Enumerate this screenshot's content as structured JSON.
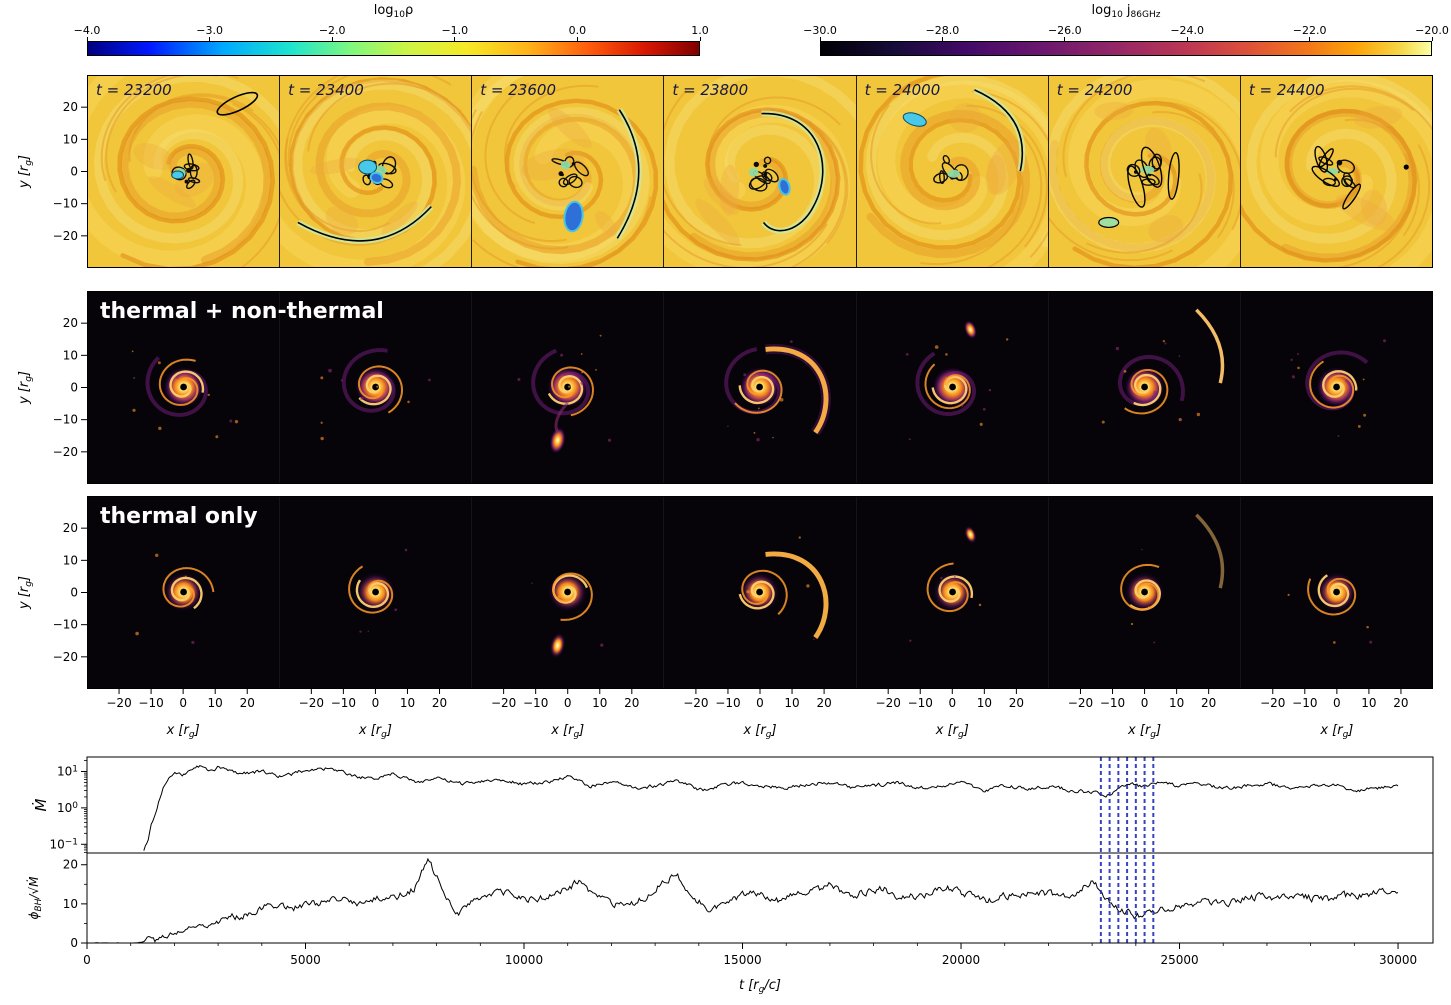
{
  "colorbars": {
    "density": {
      "title": "log_{10}ρ",
      "ticks": [
        "−4.0",
        "−3.0",
        "−2.0",
        "−1.0",
        "0.0",
        "1.0"
      ],
      "range": [
        -4,
        1
      ],
      "stops": [
        "#00007f 0%",
        "#0018ff 10%",
        "#00a8ff 22%",
        "#1de4cf 33%",
        "#7ef87e 43%",
        "#ccf446 52%",
        "#f6e926 62%",
        "#ffb31a 72%",
        "#ff5c0c 82%",
        "#d91802 91%",
        "#800000 100%"
      ]
    },
    "emission": {
      "title": "log_{10} j_{86GHz}",
      "ticks": [
        "−30.0",
        "−28.0",
        "−26.0",
        "−24.0",
        "−22.0",
        "−20.0"
      ],
      "range": [
        -30,
        -20
      ],
      "stops": [
        "#000004 0%",
        "#160b39 12%",
        "#420a68 24%",
        "#6a176e 36%",
        "#932667 48%",
        "#bc3754 60%",
        "#dd513a 70%",
        "#f37819 80%",
        "#fca50a 88%",
        "#f6d746 95%",
        "#fcffa4 100%"
      ]
    }
  },
  "snapshots": {
    "times": [
      23200,
      23400,
      23600,
      23800,
      24000,
      24200,
      24400
    ],
    "labels": [
      "t = 23200",
      "t = 23400",
      "t = 23600",
      "t = 23800",
      "t = 24000",
      "t = 24200",
      "t = 24400"
    ]
  },
  "rows": {
    "ntnt_label": "thermal + non-thermal",
    "thermal_label": "thermal only"
  },
  "axes": {
    "image_ylabel": "y [r_{g}]",
    "image_ytick_vals": [
      20,
      10,
      0,
      -10,
      -20
    ],
    "image_ytick_labels": [
      "20",
      "10",
      "0",
      "−10",
      "−20"
    ],
    "image_xlabel": "x [r_{g}]",
    "image_xtick_vals": [
      -20,
      -10,
      0,
      10,
      20
    ],
    "image_xtick_labels": [
      "−20",
      "−10",
      "0",
      "10",
      "20"
    ]
  },
  "chart_data": [
    {
      "type": "line",
      "name": "accretion-rate",
      "ylabel": "Ṁ",
      "yscale": "log",
      "ylim": [
        0.055,
        25
      ],
      "xlim": [
        0,
        30800
      ],
      "xlabel": "t [r_{g}/c]",
      "xtick_vals": [
        0,
        5000,
        10000,
        15000,
        20000,
        25000,
        30000
      ],
      "xtick_labels": [
        "0",
        "5000",
        "10000",
        "15000",
        "20000",
        "25000",
        "30000"
      ],
      "ytick_vals": [
        10,
        1,
        0.1
      ],
      "ytick_labels": [
        "10^{1}",
        "10^{0}",
        "10^{−1}"
      ],
      "vlines": [
        23200,
        23400,
        23600,
        23800,
        24000,
        24200,
        24400
      ],
      "vline_color": "#2230b8",
      "points": [
        [
          1300,
          0.07
        ],
        [
          1400,
          0.12
        ],
        [
          1500,
          0.45
        ],
        [
          1600,
          0.9
        ],
        [
          1700,
          2.5
        ],
        [
          1800,
          5
        ],
        [
          2000,
          9
        ],
        [
          2200,
          7.5
        ],
        [
          2400,
          12
        ],
        [
          2600,
          14
        ],
        [
          2800,
          10
        ],
        [
          3000,
          13
        ],
        [
          3200,
          11
        ],
        [
          3500,
          9
        ],
        [
          4000,
          10
        ],
        [
          4500,
          7
        ],
        [
          5000,
          11
        ],
        [
          5500,
          12
        ],
        [
          6000,
          8
        ],
        [
          6500,
          6
        ],
        [
          7000,
          9
        ],
        [
          7500,
          5
        ],
        [
          8000,
          6.5
        ],
        [
          8500,
          4.5
        ],
        [
          9000,
          5.5
        ],
        [
          9500,
          6
        ],
        [
          10000,
          4.5
        ],
        [
          10500,
          5
        ],
        [
          11000,
          7
        ],
        [
          11500,
          4
        ],
        [
          12000,
          5
        ],
        [
          12500,
          3.5
        ],
        [
          13000,
          4
        ],
        [
          13500,
          5.5
        ],
        [
          14000,
          3
        ],
        [
          14500,
          4
        ],
        [
          15000,
          5
        ],
        [
          15500,
          4
        ],
        [
          16000,
          3.5
        ],
        [
          16500,
          4.5
        ],
        [
          17000,
          5
        ],
        [
          17500,
          3.5
        ],
        [
          18000,
          4
        ],
        [
          18500,
          5
        ],
        [
          19000,
          3.5
        ],
        [
          19500,
          4
        ],
        [
          20000,
          5
        ],
        [
          20500,
          3
        ],
        [
          21000,
          4
        ],
        [
          21500,
          3.5
        ],
        [
          22000,
          4
        ],
        [
          22500,
          3
        ],
        [
          23000,
          2.6
        ],
        [
          23300,
          2.1
        ],
        [
          23600,
          3.2
        ],
        [
          23900,
          4.6
        ],
        [
          24200,
          3.8
        ],
        [
          24500,
          5
        ],
        [
          25000,
          4
        ],
        [
          25500,
          4.6
        ],
        [
          26000,
          3.4
        ],
        [
          26500,
          4
        ],
        [
          27000,
          4.6
        ],
        [
          27500,
          3.6
        ],
        [
          28000,
          4
        ],
        [
          28500,
          4.4
        ],
        [
          29000,
          3
        ],
        [
          29500,
          3.4
        ],
        [
          30000,
          4
        ]
      ]
    },
    {
      "type": "line",
      "name": "phi-bh-normalized",
      "ylabel": "ϕ_{BH}/√Ṁ",
      "ylim": [
        0,
        23
      ],
      "ytick_vals": [
        0,
        10,
        20
      ],
      "ytick_labels": [
        "0",
        "10",
        "20"
      ],
      "points": [
        [
          0,
          0
        ],
        [
          1100,
          0
        ],
        [
          1300,
          0.3
        ],
        [
          1450,
          2.2
        ],
        [
          1600,
          0.8
        ],
        [
          1900,
          2
        ],
        [
          2300,
          3.5
        ],
        [
          2700,
          5
        ],
        [
          3100,
          6
        ],
        [
          3500,
          7
        ],
        [
          3900,
          8.5
        ],
        [
          4300,
          10
        ],
        [
          4700,
          9
        ],
        [
          5100,
          10
        ],
        [
          5500,
          10.5
        ],
        [
          5900,
          11
        ],
        [
          6300,
          10
        ],
        [
          6700,
          11.5
        ],
        [
          7100,
          12
        ],
        [
          7500,
          14
        ],
        [
          7800,
          21
        ],
        [
          8000,
          17
        ],
        [
          8200,
          11
        ],
        [
          8500,
          8
        ],
        [
          9000,
          12
        ],
        [
          9400,
          13
        ],
        [
          9800,
          12
        ],
        [
          10200,
          11
        ],
        [
          10600,
          12
        ],
        [
          11000,
          14
        ],
        [
          11300,
          16
        ],
        [
          11600,
          12
        ],
        [
          12000,
          10
        ],
        [
          12400,
          9
        ],
        [
          12800,
          12
        ],
        [
          13200,
          16
        ],
        [
          13500,
          17
        ],
        [
          13800,
          12
        ],
        [
          14200,
          9
        ],
        [
          14600,
          10
        ],
        [
          15000,
          12
        ],
        [
          15400,
          13
        ],
        [
          15800,
          11
        ],
        [
          16200,
          12
        ],
        [
          16600,
          13
        ],
        [
          17000,
          15
        ],
        [
          17400,
          12
        ],
        [
          17800,
          13
        ],
        [
          18200,
          14
        ],
        [
          18600,
          12
        ],
        [
          19000,
          12
        ],
        [
          19400,
          13
        ],
        [
          19800,
          14
        ],
        [
          20200,
          12
        ],
        [
          20600,
          11
        ],
        [
          21000,
          12
        ],
        [
          21400,
          12
        ],
        [
          21800,
          13
        ],
        [
          22200,
          12
        ],
        [
          22600,
          12
        ],
        [
          23000,
          16
        ],
        [
          23300,
          12
        ],
        [
          23600,
          8.5
        ],
        [
          24000,
          7
        ],
        [
          24400,
          8
        ],
        [
          24800,
          9
        ],
        [
          25200,
          10
        ],
        [
          25600,
          11
        ],
        [
          26000,
          10
        ],
        [
          26400,
          11
        ],
        [
          26800,
          12
        ],
        [
          27200,
          11
        ],
        [
          27600,
          12
        ],
        [
          28000,
          11.5
        ],
        [
          28400,
          11
        ],
        [
          28800,
          12
        ],
        [
          29200,
          12.5
        ],
        [
          29600,
          13
        ],
        [
          30000,
          13
        ]
      ]
    }
  ]
}
